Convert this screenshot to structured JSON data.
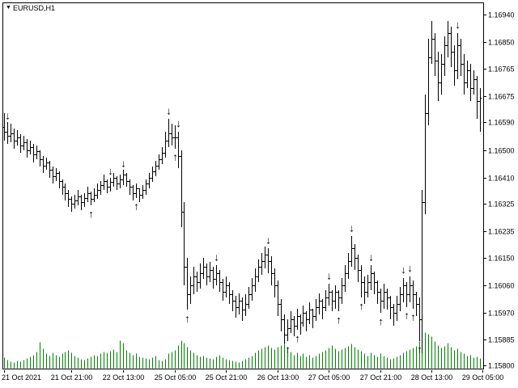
{
  "header": {
    "symbol_label": "EURUSD,H1",
    "dropdown_icon": "▼"
  },
  "colors": {
    "background": "#FFFFFF",
    "border": "#000000",
    "bar": "#000000",
    "volume": "#008000",
    "sell_arrow": "#FF00FF",
    "buy_arrow": "#00BFFF",
    "axis_text": "#000000"
  },
  "icons": {
    "sell_arrow": "↓",
    "buy_arrow": "↑",
    "dropdown": "▼"
  },
  "price_axis": {
    "labels": [
      "1.16940",
      "1.16850",
      "1.16765",
      "1.16675",
      "1.16590",
      "1.16500",
      "1.16410",
      "1.16325",
      "1.16235",
      "1.16150",
      "1.16060",
      "1.15970",
      "1.15885",
      "1.15800"
    ]
  },
  "time_axis": {
    "items": [
      {
        "label": "21 Oct 2021",
        "bar": 0
      },
      {
        "label": "21 Oct 21:00",
        "bar": 21
      },
      {
        "label": "22 Oct 13:00",
        "bar": 37
      },
      {
        "label": "25 Oct 05:00",
        "bar": 53
      },
      {
        "label": "25 Oct 21:00",
        "bar": 69
      },
      {
        "label": "26 Oct 13:00",
        "bar": 85
      },
      {
        "label": "27 Oct 05:00",
        "bar": 101
      },
      {
        "label": "27 Oct 21:00",
        "bar": 117
      },
      {
        "label": "28 Oct 13:00",
        "bar": 133
      },
      {
        "label": "29 Oct 05:00",
        "bar": 149
      }
    ]
  },
  "chart_data": {
    "type": "bar",
    "symbol": "EURUSD",
    "timeframe": "H1",
    "title": "EURUSD,H1",
    "ylim": [
      1.158,
      1.1694
    ],
    "grid": false,
    "first_open": 1.16575,
    "bars_hlc": [
      [
        1.1662,
        1.1653,
        1.1656
      ],
      [
        1.1659,
        1.1652,
        1.16545
      ],
      [
        1.16585,
        1.16525,
        1.16555
      ],
      [
        1.1657,
        1.16505,
        1.1653
      ],
      [
        1.16565,
        1.16515,
        1.1654
      ],
      [
        1.1655,
        1.1649,
        1.16515
      ],
      [
        1.16545,
        1.165,
        1.16525
      ],
      [
        1.16535,
        1.16475,
        1.165
      ],
      [
        1.1653,
        1.16485,
        1.1651
      ],
      [
        1.1652,
        1.1646,
        1.16485
      ],
      [
        1.16515,
        1.1647,
        1.16495
      ],
      [
        1.165,
        1.16445,
        1.1647
      ],
      [
        1.1648,
        1.16425,
        1.1645
      ],
      [
        1.16475,
        1.16435,
        1.1646
      ],
      [
        1.16465,
        1.1641,
        1.16435
      ],
      [
        1.16445,
        1.1639,
        1.16415
      ],
      [
        1.1644,
        1.164,
        1.16425
      ],
      [
        1.1643,
        1.16375,
        1.164
      ],
      [
        1.16405,
        1.16355,
        1.1638
      ],
      [
        1.1639,
        1.16335,
        1.1636
      ],
      [
        1.1637,
        1.16315,
        1.1634
      ],
      [
        1.1635,
        1.163,
        1.16325
      ],
      [
        1.16355,
        1.1631,
        1.16335
      ],
      [
        1.1637,
        1.1632,
        1.1635
      ],
      [
        1.16355,
        1.16305,
        1.1633
      ],
      [
        1.1636,
        1.16315,
        1.16345
      ],
      [
        1.1638,
        1.1633,
        1.1636
      ],
      [
        1.16365,
        1.1632,
        1.1634
      ],
      [
        1.16375,
        1.1633,
        1.16355
      ],
      [
        1.1639,
        1.1634,
        1.1637
      ],
      [
        1.164,
        1.16355,
        1.16385
      ],
      [
        1.1642,
        1.1637,
        1.164
      ],
      [
        1.16405,
        1.1636,
        1.1638
      ],
      [
        1.1641,
        1.16365,
        1.16395
      ],
      [
        1.16425,
        1.1638,
        1.1641
      ],
      [
        1.16415,
        1.1637,
        1.1639
      ],
      [
        1.1642,
        1.16375,
        1.16405
      ],
      [
        1.16435,
        1.16385,
        1.1642
      ],
      [
        1.16425,
        1.1638,
        1.164
      ],
      [
        1.16405,
        1.16355,
        1.1638
      ],
      [
        1.16385,
        1.16335,
        1.1636
      ],
      [
        1.1639,
        1.16345,
        1.16375
      ],
      [
        1.16375,
        1.1633,
        1.16355
      ],
      [
        1.16385,
        1.1634,
        1.1637
      ],
      [
        1.16405,
        1.16355,
        1.1639
      ],
      [
        1.16425,
        1.16375,
        1.1641
      ],
      [
        1.16445,
        1.16395,
        1.1643
      ],
      [
        1.16465,
        1.16415,
        1.1645
      ],
      [
        1.16485,
        1.16435,
        1.1647
      ],
      [
        1.1651,
        1.16455,
        1.1649
      ],
      [
        1.1656,
        1.16475,
        1.1653
      ],
      [
        1.166,
        1.1651,
        1.16555
      ],
      [
        1.16585,
        1.16515,
        1.1654
      ],
      [
        1.1658,
        1.16505,
        1.1654
      ],
      [
        1.1656,
        1.1644,
        1.1648
      ],
      [
        1.165,
        1.1625,
        1.163
      ],
      [
        1.1633,
        1.1606,
        1.1612
      ],
      [
        1.1615,
        1.1598,
        1.1603
      ],
      [
        1.1609,
        1.16,
        1.1606
      ],
      [
        1.1612,
        1.1603,
        1.1609
      ],
      [
        1.16105,
        1.1604,
        1.1607
      ],
      [
        1.1613,
        1.1605,
        1.161
      ],
      [
        1.1615,
        1.1608,
        1.1612
      ],
      [
        1.1613,
        1.1606,
        1.1609
      ],
      [
        1.16135,
        1.1607,
        1.1611
      ],
      [
        1.1612,
        1.1605,
        1.1608
      ],
      [
        1.16125,
        1.1606,
        1.161
      ],
      [
        1.1611,
        1.1604,
        1.1607
      ],
      [
        1.1608,
        1.1601,
        1.1604
      ],
      [
        1.1609,
        1.1602,
        1.1606
      ],
      [
        1.1607,
        1.16,
        1.1603
      ],
      [
        1.16045,
        1.15975,
        1.1601
      ],
      [
        1.16025,
        1.15955,
        1.1599
      ],
      [
        1.16035,
        1.15965,
        1.1601
      ],
      [
        1.1602,
        1.15945,
        1.1598
      ],
      [
        1.1603,
        1.1596,
        1.16
      ],
      [
        1.16055,
        1.15985,
        1.1603
      ],
      [
        1.16085,
        1.1601,
        1.1606
      ],
      [
        1.16115,
        1.1604,
        1.1609
      ],
      [
        1.16145,
        1.1607,
        1.1612
      ],
      [
        1.16165,
        1.16095,
        1.1614
      ],
      [
        1.16185,
        1.16115,
        1.1616
      ],
      [
        1.1618,
        1.161,
        1.1614
      ],
      [
        1.16155,
        1.1606,
        1.161
      ],
      [
        1.16115,
        1.1602,
        1.1606
      ],
      [
        1.16075,
        1.1596,
        1.16
      ],
      [
        1.16015,
        1.1591,
        1.1595
      ],
      [
        1.15965,
        1.1587,
        1.159
      ],
      [
        1.1595,
        1.1588,
        1.1592
      ],
      [
        1.15975,
        1.15905,
        1.1595
      ],
      [
        1.1596,
        1.15895,
        1.1593
      ],
      [
        1.15985,
        1.15915,
        1.1596
      ],
      [
        1.15965,
        1.159,
        1.1594
      ],
      [
        1.15995,
        1.15925,
        1.1597
      ],
      [
        1.15975,
        1.1591,
        1.1595
      ],
      [
        1.16005,
        1.15935,
        1.1598
      ],
      [
        1.15985,
        1.1592,
        1.1596
      ],
      [
        1.16015,
        1.15945,
        1.1599
      ],
      [
        1.16035,
        1.15965,
        1.1601
      ],
      [
        1.16015,
        1.1595,
        1.1599
      ],
      [
        1.16045,
        1.15975,
        1.1602
      ],
      [
        1.16065,
        1.15995,
        1.1604
      ],
      [
        1.16045,
        1.15975,
        1.1601
      ],
      [
        1.1606,
        1.15985,
        1.1604
      ],
      [
        1.16045,
        1.15975,
        1.1602
      ],
      [
        1.16085,
        1.16,
        1.1606
      ],
      [
        1.16125,
        1.1604,
        1.161
      ],
      [
        1.16165,
        1.1608,
        1.1614
      ],
      [
        1.1622,
        1.1612,
        1.1618
      ],
      [
        1.16195,
        1.1611,
        1.1615
      ],
      [
        1.1616,
        1.1607,
        1.1611
      ],
      [
        1.16125,
        1.1602,
        1.1607
      ],
      [
        1.1609,
        1.16,
        1.1604
      ],
      [
        1.16095,
        1.1602,
        1.1607
      ],
      [
        1.16125,
        1.16045,
        1.161
      ],
      [
        1.16105,
        1.1603,
        1.1607
      ],
      [
        1.16075,
        1.16,
        1.1604
      ],
      [
        1.1605,
        1.1597,
        1.1601
      ],
      [
        1.16065,
        1.15985,
        1.1604
      ],
      [
        1.1605,
        1.1598,
        1.1602
      ],
      [
        1.16025,
        1.1595,
        1.1599
      ],
      [
        1.16,
        1.1593,
        1.1597
      ],
      [
        1.16025,
        1.15945,
        1.16
      ],
      [
        1.16055,
        1.15975,
        1.1603
      ],
      [
        1.16085,
        1.16005,
        1.1606
      ],
      [
        1.1607,
        1.1599,
        1.1603
      ],
      [
        1.1609,
        1.16005,
        1.1606
      ],
      [
        1.16075,
        1.15985,
        1.1603
      ],
      [
        1.1604,
        1.1596,
        1.16
      ],
      [
        1.1602,
        1.1588,
        1.1595
      ],
      [
        1.1637,
        1.1584,
        1.1633
      ],
      [
        1.1668,
        1.1629,
        1.1662
      ],
      [
        1.1686,
        1.1658,
        1.168
      ],
      [
        1.1692,
        1.1678,
        1.1686
      ],
      [
        1.1688,
        1.1674,
        1.1679
      ],
      [
        1.1682,
        1.1666,
        1.1672
      ],
      [
        1.1681,
        1.1668,
        1.1678
      ],
      [
        1.1687,
        1.1674,
        1.1684
      ],
      [
        1.1692,
        1.168,
        1.1688
      ],
      [
        1.169,
        1.1677,
        1.1682
      ],
      [
        1.1684,
        1.1671,
        1.1676
      ],
      [
        1.1688,
        1.1673,
        1.1684
      ],
      [
        1.1686,
        1.1674,
        1.1678
      ],
      [
        1.1681,
        1.1668,
        1.1672
      ],
      [
        1.1679,
        1.167,
        1.1676
      ],
      [
        1.1678,
        1.1666,
        1.167
      ],
      [
        1.1676,
        1.1668,
        1.1673
      ],
      [
        1.1674,
        1.166,
        1.1666
      ],
      [
        1.167,
        1.1656,
        1.1667
      ]
    ],
    "volumes": [
      120,
      90,
      75,
      60,
      80,
      70,
      95,
      110,
      130,
      150,
      180,
      290,
      220,
      160,
      140,
      170,
      150,
      130,
      160,
      180,
      200,
      170,
      140,
      120,
      100,
      90,
      110,
      130,
      150,
      140,
      160,
      180,
      170,
      190,
      210,
      180,
      310,
      280,
      200,
      170,
      150,
      160,
      130,
      120,
      110,
      100,
      120,
      140,
      90,
      80,
      100,
      160,
      180,
      200,
      260,
      310,
      280,
      240,
      200,
      170,
      150,
      130,
      140,
      120,
      110,
      100,
      130,
      150,
      120,
      100,
      90,
      80,
      70,
      60,
      80,
      100,
      120,
      140,
      170,
      200,
      220,
      240,
      260,
      230,
      210,
      240,
      260,
      280,
      220,
      180,
      150,
      170,
      140,
      160,
      130,
      150,
      120,
      140,
      160,
      180,
      200,
      230,
      260,
      220,
      190,
      210,
      230,
      250,
      270,
      240,
      210,
      190,
      160,
      140,
      170,
      150,
      130,
      160,
      140,
      120,
      100,
      110,
      130,
      150,
      170,
      190,
      210,
      230,
      250,
      300,
      420,
      400,
      380,
      360,
      300,
      260,
      230,
      250,
      280,
      240,
      200,
      220,
      180,
      160,
      140,
      150,
      120,
      130,
      110
    ],
    "signals": [
      {
        "bar": 1,
        "type": "sell",
        "price": 1.166
      },
      {
        "bar": 27,
        "type": "buy",
        "price": 1.1631
      },
      {
        "bar": 33,
        "type": "sell",
        "price": 1.1642
      },
      {
        "bar": 37,
        "type": "sell",
        "price": 1.16445
      },
      {
        "bar": 41,
        "type": "buy",
        "price": 1.16335
      },
      {
        "bar": 51,
        "type": "sell",
        "price": 1.16615
      },
      {
        "bar": 53,
        "type": "buy",
        "price": 1.16495
      },
      {
        "bar": 54,
        "type": "sell",
        "price": 1.16575
      },
      {
        "bar": 57,
        "type": "buy",
        "price": 1.1597
      },
      {
        "bar": 66,
        "type": "sell",
        "price": 1.1614
      },
      {
        "bar": 82,
        "type": "sell",
        "price": 1.16195
      },
      {
        "bar": 88,
        "type": "buy",
        "price": 1.1587
      },
      {
        "bar": 91,
        "type": "buy",
        "price": 1.15905
      },
      {
        "bar": 101,
        "type": "sell",
        "price": 1.1608
      },
      {
        "bar": 104,
        "type": "buy",
        "price": 1.15965
      },
      {
        "bar": 108,
        "type": "sell",
        "price": 1.16235
      },
      {
        "bar": 111,
        "type": "buy",
        "price": 1.1601
      },
      {
        "bar": 114,
        "type": "sell",
        "price": 1.1614
      },
      {
        "bar": 117,
        "type": "buy",
        "price": 1.1596
      },
      {
        "bar": 124,
        "type": "sell",
        "price": 1.161
      },
      {
        "bar": 125,
        "type": "buy",
        "price": 1.1598
      },
      {
        "bar": 126,
        "type": "sell",
        "price": 1.16105
      },
      {
        "bar": 127,
        "type": "buy",
        "price": 1.15975
      },
      {
        "bar": 129,
        "type": "buy",
        "price": 1.1587
      },
      {
        "bar": 141,
        "type": "sell",
        "price": 1.16895
      }
    ]
  }
}
